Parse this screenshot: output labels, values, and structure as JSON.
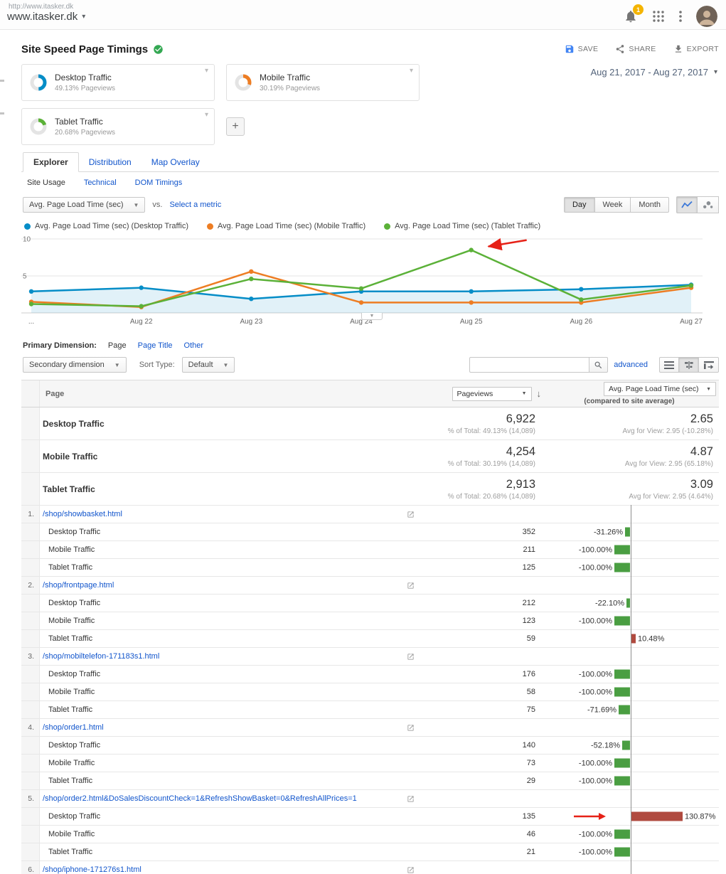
{
  "topbar": {
    "url": "http://www.itasker.dk",
    "account": "www.itasker.dk",
    "notification_count": "1"
  },
  "header": {
    "title": "Site Speed Page Timings",
    "save_label": "SAVE",
    "share_label": "SHARE",
    "export_label": "EXPORT"
  },
  "date_range": "Aug 21, 2017 - Aug 27, 2017",
  "segments": [
    {
      "name": "Desktop Traffic",
      "detail": "49.13% Pageviews",
      "pct": 49.13,
      "color": "#058dc7"
    },
    {
      "name": "Mobile Traffic",
      "detail": "30.19% Pageviews",
      "pct": 30.19,
      "color": "#ed7d23"
    },
    {
      "name": "Tablet Traffic",
      "detail": "20.68% Pageviews",
      "pct": 20.68,
      "color": "#5bb138"
    }
  ],
  "tabs": [
    "Explorer",
    "Distribution",
    "Map Overlay"
  ],
  "active_tab": "Explorer",
  "subtabs": [
    "Site Usage",
    "Technical",
    "DOM Timings"
  ],
  "active_subtab": "Site Usage",
  "metric_bar": {
    "metric": "Avg. Page Load Time (sec)",
    "vs": "vs.",
    "select_metric": "Select a metric",
    "granularity": [
      "Day",
      "Week",
      "Month"
    ],
    "active_granularity": "Day"
  },
  "chart_data": {
    "type": "line",
    "x": [
      "...",
      "Aug 22",
      "Aug 23",
      "Aug 24",
      "Aug 25",
      "Aug 26",
      "Aug 27"
    ],
    "series": [
      {
        "name": "Avg. Page Load Time (sec) (Desktop Traffic)",
        "color": "#058dc7",
        "area": true,
        "values": [
          2.9,
          3.4,
          1.9,
          2.9,
          2.9,
          3.2,
          3.8
        ]
      },
      {
        "name": "Avg. Page Load Time (sec) (Mobile Traffic)",
        "color": "#ed7d23",
        "values": [
          1.5,
          0.8,
          5.6,
          1.4,
          1.4,
          1.4,
          3.4
        ]
      },
      {
        "name": "Avg. Page Load Time (sec) (Tablet Traffic)",
        "color": "#5bb138",
        "values": [
          1.2,
          0.9,
          4.6,
          3.3,
          8.5,
          1.8,
          3.7
        ]
      }
    ],
    "ylim": [
      0,
      10
    ],
    "yticks": [
      5,
      10
    ],
    "grid": true,
    "legend_position": "top",
    "annotation": "red arrow pointing at Tablet Traffic peak on Aug 25"
  },
  "primary_dimension": {
    "label": "Primary Dimension:",
    "options": [
      "Page",
      "Page Title",
      "Other"
    ],
    "active": "Page"
  },
  "toolbar": {
    "secondary_dimension": "Secondary dimension",
    "sort_type_label": "Sort Type:",
    "sort_type_value": "Default",
    "search_value": "",
    "advanced_label": "advanced"
  },
  "table": {
    "columns": {
      "page": "Page",
      "pageviews": "Pageviews",
      "metric": "Avg. Page Load Time (sec)",
      "metric_sub": "(compared to site average)"
    },
    "summary": [
      {
        "label": "Desktop Traffic",
        "pageviews": "6,922",
        "pageviews_sub": "% of Total: 49.13% (14,089)",
        "value": "2.65",
        "value_sub": "Avg for View: 2.95 (-10.28%)"
      },
      {
        "label": "Mobile Traffic",
        "pageviews": "4,254",
        "pageviews_sub": "% of Total: 30.19% (14,089)",
        "value": "4.87",
        "value_sub": "Avg for View: 2.95 (65.18%)"
      },
      {
        "label": "Tablet Traffic",
        "pageviews": "2,913",
        "pageviews_sub": "% of Total: 20.68% (14,089)",
        "value": "3.09",
        "value_sub": "Avg for View: 2.95 (4.64%)"
      }
    ],
    "rows": [
      {
        "index": "1.",
        "page": "/shop/showbasket.html",
        "segments": [
          {
            "label": "Desktop Traffic",
            "pageviews": "352",
            "delta": "-31.26%",
            "delta_value": -31.26
          },
          {
            "label": "Mobile Traffic",
            "pageviews": "211",
            "delta": "-100.00%",
            "delta_value": -100
          },
          {
            "label": "Tablet Traffic",
            "pageviews": "125",
            "delta": "-100.00%",
            "delta_value": -100
          }
        ]
      },
      {
        "index": "2.",
        "page": "/shop/frontpage.html",
        "segments": [
          {
            "label": "Desktop Traffic",
            "pageviews": "212",
            "delta": "-22.10%",
            "delta_value": -22.1
          },
          {
            "label": "Mobile Traffic",
            "pageviews": "123",
            "delta": "-100.00%",
            "delta_value": -100
          },
          {
            "label": "Tablet Traffic",
            "pageviews": "59",
            "delta": "10.48%",
            "delta_value": 10.48
          }
        ]
      },
      {
        "index": "3.",
        "page": "/shop/mobiltelefon-171183s1.html",
        "segments": [
          {
            "label": "Desktop Traffic",
            "pageviews": "176",
            "delta": "-100.00%",
            "delta_value": -100
          },
          {
            "label": "Mobile Traffic",
            "pageviews": "58",
            "delta": "-100.00%",
            "delta_value": -100
          },
          {
            "label": "Tablet Traffic",
            "pageviews": "75",
            "delta": "-71.69%",
            "delta_value": -71.69
          }
        ]
      },
      {
        "index": "4.",
        "page": "/shop/order1.html",
        "segments": [
          {
            "label": "Desktop Traffic",
            "pageviews": "140",
            "delta": "-52.18%",
            "delta_value": -52.18
          },
          {
            "label": "Mobile Traffic",
            "pageviews": "73",
            "delta": "-100.00%",
            "delta_value": -100
          },
          {
            "label": "Tablet Traffic",
            "pageviews": "29",
            "delta": "-100.00%",
            "delta_value": -100
          }
        ]
      },
      {
        "index": "5.",
        "page": "/shop/order2.html&DoSalesDiscountCheck=1&RefreshShowBasket=0&RefreshAllPrices=1",
        "segments": [
          {
            "label": "Desktop Traffic",
            "pageviews": "135",
            "delta": "130.87%",
            "delta_value": 130.87,
            "annotated": true
          },
          {
            "label": "Mobile Traffic",
            "pageviews": "46",
            "delta": "-100.00%",
            "delta_value": -100
          },
          {
            "label": "Tablet Traffic",
            "pageviews": "21",
            "delta": "-100.00%",
            "delta_value": -100
          }
        ]
      },
      {
        "index": "6.",
        "page": "/shop/iphone-171276s1.html",
        "segments": []
      }
    ]
  },
  "colors": {
    "desktop": "#058dc7",
    "mobile": "#ed7d23",
    "tablet": "#5bb138",
    "bar_negative": "#4a9e42",
    "bar_positive": "#b04a3f",
    "link": "#1155cc",
    "annotation": "#e62117",
    "notification_badge": "#f4b400"
  }
}
